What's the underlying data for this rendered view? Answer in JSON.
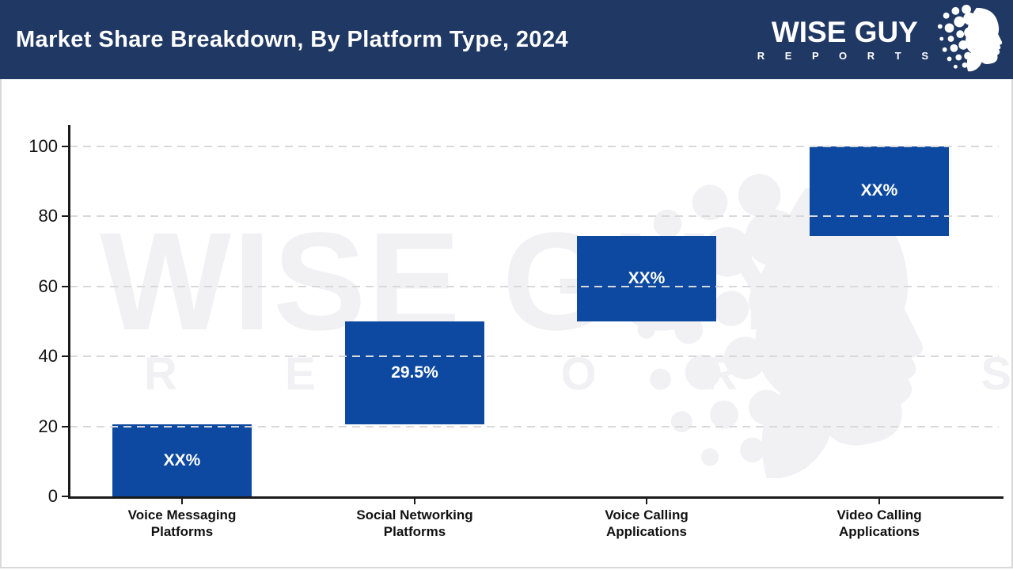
{
  "header": {
    "title": "Market Share Breakdown, By Platform Type, 2024",
    "logo": {
      "title": "WISE GUY",
      "subtitle": "R E P O R T S"
    }
  },
  "watermark": {
    "title": "WISE GUY",
    "subtitle": "R E P O R T S"
  },
  "colors": {
    "header_bg": "#203864",
    "bar": "#0d49a0",
    "bar_label": "#ffffff",
    "axis": "#1a1a1a",
    "gridline": "#d9d9d9",
    "watermark": "#f1f1f3"
  },
  "chart_data": {
    "type": "bar",
    "variant": "waterfall-floating-segments",
    "title": "Market Share Breakdown, By Platform Type, 2024",
    "categories": [
      "Voice Messaging\nPlatforms",
      "Social Networking\nPlatforms",
      "Voice Calling\nApplications",
      "Video Calling\nApplications"
    ],
    "segments": [
      {
        "category": "Voice Messaging Platforms",
        "start": 0,
        "end": 20.5,
        "value": 20.5,
        "label": "XX%"
      },
      {
        "category": "Social Networking Platforms",
        "start": 20.5,
        "end": 50,
        "value": 29.5,
        "label": "29.5%"
      },
      {
        "category": "Voice Calling Applications",
        "start": 50,
        "end": 74.5,
        "value": 24.5,
        "label": "XX%"
      },
      {
        "category": "Video Calling Applications",
        "start": 74.5,
        "end": 100,
        "value": 25.5,
        "label": "XX%"
      }
    ],
    "xlabel": "",
    "ylabel": "",
    "ylim": [
      0,
      100
    ],
    "y_ticks": [
      0,
      20,
      40,
      60,
      80,
      100
    ],
    "grid": "horizontal dashed, drawn over bars",
    "legend": "none"
  }
}
